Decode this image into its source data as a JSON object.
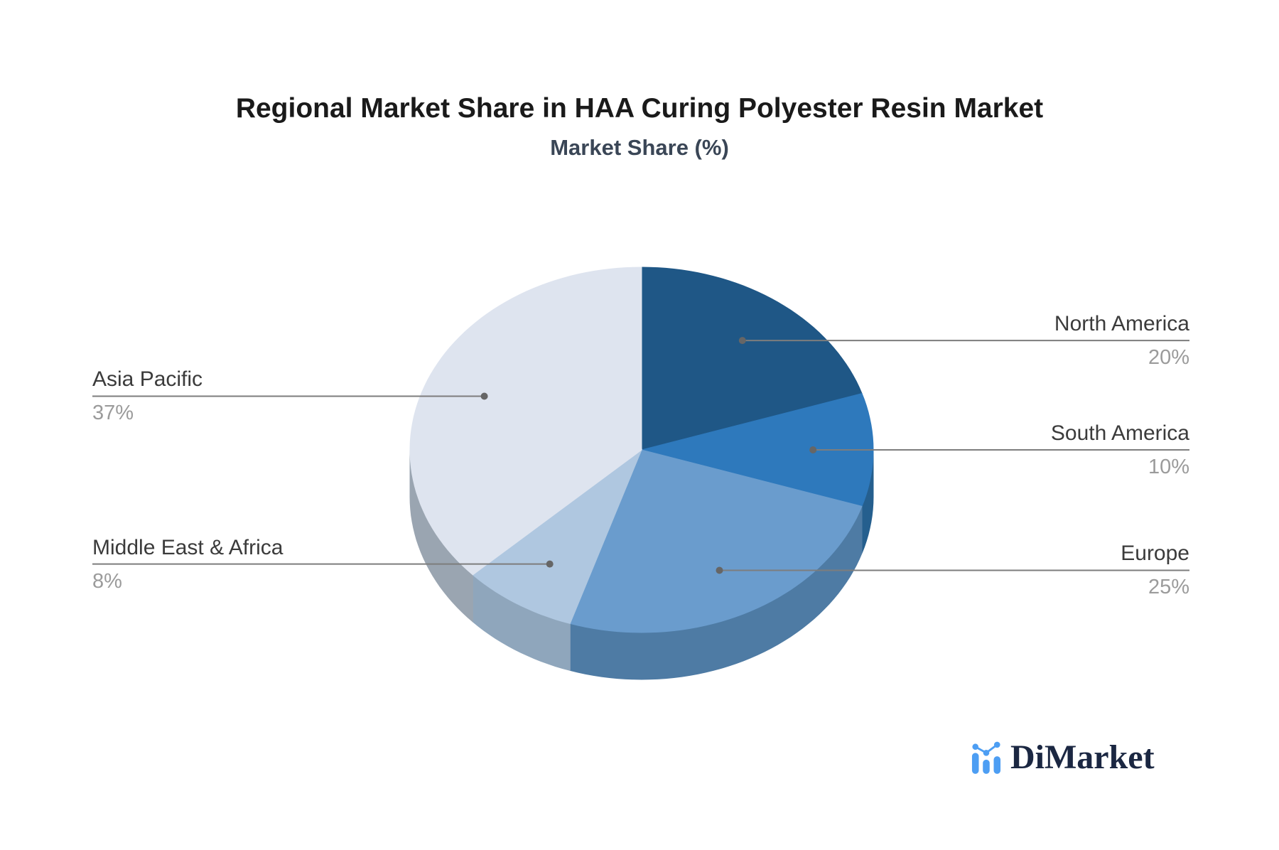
{
  "page": {
    "background": "#ffffff"
  },
  "header": {
    "title": "Regional Market Share in HAA Curing Polyester Resin Market",
    "subtitle": "Market Share (%)",
    "title_color": "#1a1a1a",
    "subtitle_color": "#3a4656"
  },
  "chart_data": {
    "type": "pie",
    "title": "Regional Market Share in HAA Curing Polyester Resin Market",
    "subtitle": "Market Share (%)",
    "unit": "%",
    "effect": "3d",
    "start_angle_deg": 0,
    "direction": "clockwise",
    "total": 100,
    "legend": "none",
    "label_layout": "callout-lines-left-right",
    "slices": [
      {
        "label": "North America",
        "value": 20,
        "display": "20%",
        "color": "#1F5786",
        "side_color": "#1A4A72"
      },
      {
        "label": "South America",
        "value": 10,
        "display": "10%",
        "color": "#2E79BC",
        "side_color": "#255F8E"
      },
      {
        "label": "Europe",
        "value": 25,
        "display": "25%",
        "color": "#6A9CCD",
        "side_color": "#4E7BA4"
      },
      {
        "label": "Middle East & Africa",
        "value": 8,
        "display": "8%",
        "color": "#AFC7E0",
        "side_color": "#8FA6BC"
      },
      {
        "label": "Asia Pacific",
        "value": 37,
        "display": "37%",
        "color": "#DEE4EF",
        "side_color": "#9AA5B1"
      }
    ],
    "style": {
      "connector_color": "#7d7d7d",
      "dot_color": "#666666",
      "label_color": "#3b3b3b",
      "value_color": "#9b9b9b"
    }
  },
  "logo": {
    "text": "DiMarket",
    "text_color": "#1b2742",
    "icon": "bar-line-chart-icon",
    "icon_color": "#4d9ef3"
  }
}
